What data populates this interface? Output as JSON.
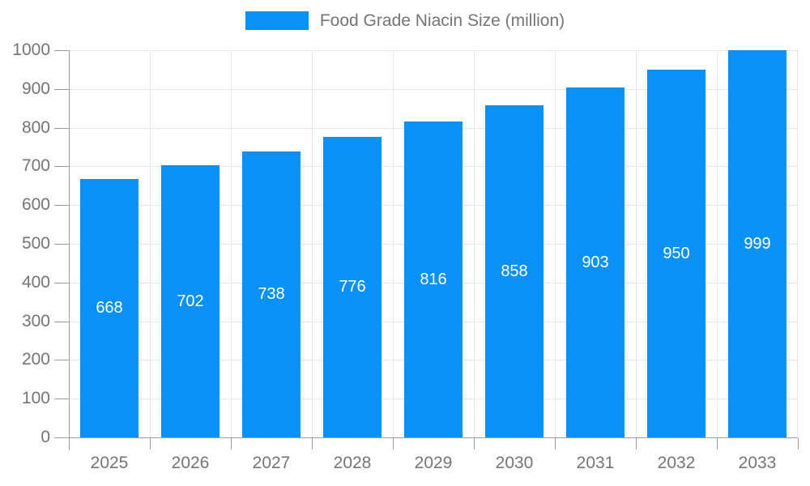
{
  "chart_data": {
    "type": "bar",
    "title": "Food Grade Niacin Size (million)",
    "legend": {
      "position": "top"
    },
    "categories": [
      "2025",
      "2026",
      "2027",
      "2028",
      "2029",
      "2030",
      "2031",
      "2032",
      "2033"
    ],
    "values": [
      668,
      702,
      738,
      776,
      816,
      858,
      903,
      950,
      999
    ],
    "xlabel": "",
    "ylabel": "",
    "ylim": [
      0,
      1000
    ],
    "y_ticks": [
      0,
      100,
      200,
      300,
      400,
      500,
      600,
      700,
      800,
      900,
      1000
    ],
    "grid": true,
    "colors": {
      "bar": "#0a91f5",
      "value_label": "#ffffff",
      "grid_line": "#e6e6e6",
      "axis_line": "#9e9e9e",
      "tick_label": "#757575",
      "legend_text": "#757575",
      "background": "#ffffff"
    }
  }
}
